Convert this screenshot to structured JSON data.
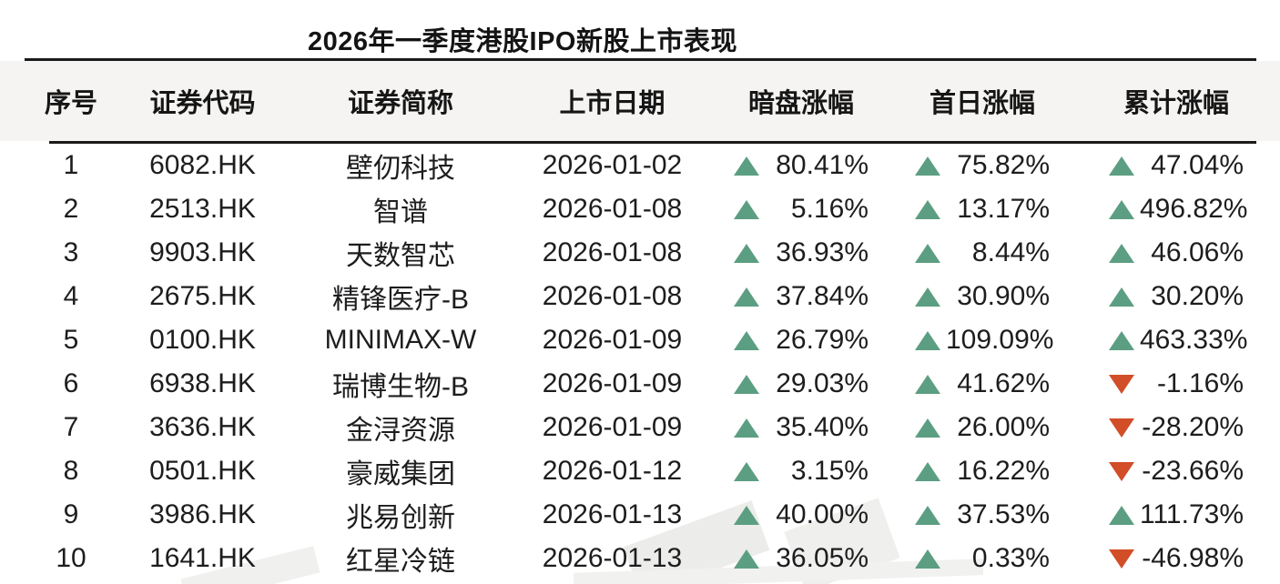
{
  "title": "2026年一季度港股IPO新股上市表现",
  "colors": {
    "up": "#5c9e82",
    "down": "#d14e28",
    "text": "#1d1d1f",
    "header_band": "#f5f4f2",
    "rule": "#1a1a1a"
  },
  "chart_data": {
    "type": "table",
    "title": "2026年一季度港股IPO新股上市表现",
    "columns": [
      "序号",
      "证券代码",
      "证券简称",
      "上市日期",
      "暗盘涨幅",
      "首日涨幅",
      "累计涨幅"
    ],
    "rows": [
      {
        "no": "1",
        "code": "6082.HK",
        "name": "壁仞科技",
        "date": "2026-01-02",
        "dark": {
          "direction": "up",
          "value": "80.41%"
        },
        "first": {
          "direction": "up",
          "value": "75.82%"
        },
        "cum": {
          "direction": "up",
          "value": "47.04%"
        }
      },
      {
        "no": "2",
        "code": "2513.HK",
        "name": "智谱",
        "date": "2026-01-08",
        "dark": {
          "direction": "up",
          "value": "5.16%"
        },
        "first": {
          "direction": "up",
          "value": "13.17%"
        },
        "cum": {
          "direction": "up",
          "value": "496.82%"
        }
      },
      {
        "no": "3",
        "code": "9903.HK",
        "name": "天数智芯",
        "date": "2026-01-08",
        "dark": {
          "direction": "up",
          "value": "36.93%"
        },
        "first": {
          "direction": "up",
          "value": "8.44%"
        },
        "cum": {
          "direction": "up",
          "value": "46.06%"
        }
      },
      {
        "no": "4",
        "code": "2675.HK",
        "name": "精锋医疗-B",
        "date": "2026-01-08",
        "dark": {
          "direction": "up",
          "value": "37.84%"
        },
        "first": {
          "direction": "up",
          "value": "30.90%"
        },
        "cum": {
          "direction": "up",
          "value": "30.20%"
        }
      },
      {
        "no": "5",
        "code": "0100.HK",
        "name": "MINIMAX-W",
        "date": "2026-01-09",
        "dark": {
          "direction": "up",
          "value": "26.79%"
        },
        "first": {
          "direction": "up",
          "value": "109.09%"
        },
        "cum": {
          "direction": "up",
          "value": "463.33%"
        }
      },
      {
        "no": "6",
        "code": "6938.HK",
        "name": "瑞博生物-B",
        "date": "2026-01-09",
        "dark": {
          "direction": "up",
          "value": "29.03%"
        },
        "first": {
          "direction": "up",
          "value": "41.62%"
        },
        "cum": {
          "direction": "down",
          "value": "-1.16%"
        }
      },
      {
        "no": "7",
        "code": "3636.HK",
        "name": "金浔资源",
        "date": "2026-01-09",
        "dark": {
          "direction": "up",
          "value": "35.40%"
        },
        "first": {
          "direction": "up",
          "value": "26.00%"
        },
        "cum": {
          "direction": "down",
          "value": "-28.20%"
        }
      },
      {
        "no": "8",
        "code": "0501.HK",
        "name": "豪威集团",
        "date": "2026-01-12",
        "dark": {
          "direction": "up",
          "value": "3.15%"
        },
        "first": {
          "direction": "up",
          "value": "16.22%"
        },
        "cum": {
          "direction": "down",
          "value": "-23.66%"
        }
      },
      {
        "no": "9",
        "code": "3986.HK",
        "name": "兆易创新",
        "date": "2026-01-13",
        "dark": {
          "direction": "up",
          "value": "40.00%"
        },
        "first": {
          "direction": "up",
          "value": "37.53%"
        },
        "cum": {
          "direction": "up",
          "value": "111.73%"
        }
      },
      {
        "no": "10",
        "code": "1641.HK",
        "name": "红星冷链",
        "date": "2026-01-13",
        "dark": {
          "direction": "up",
          "value": "36.05%"
        },
        "first": {
          "direction": "up",
          "value": "0.33%"
        },
        "cum": {
          "direction": "down",
          "value": "-46.98%"
        }
      }
    ]
  }
}
